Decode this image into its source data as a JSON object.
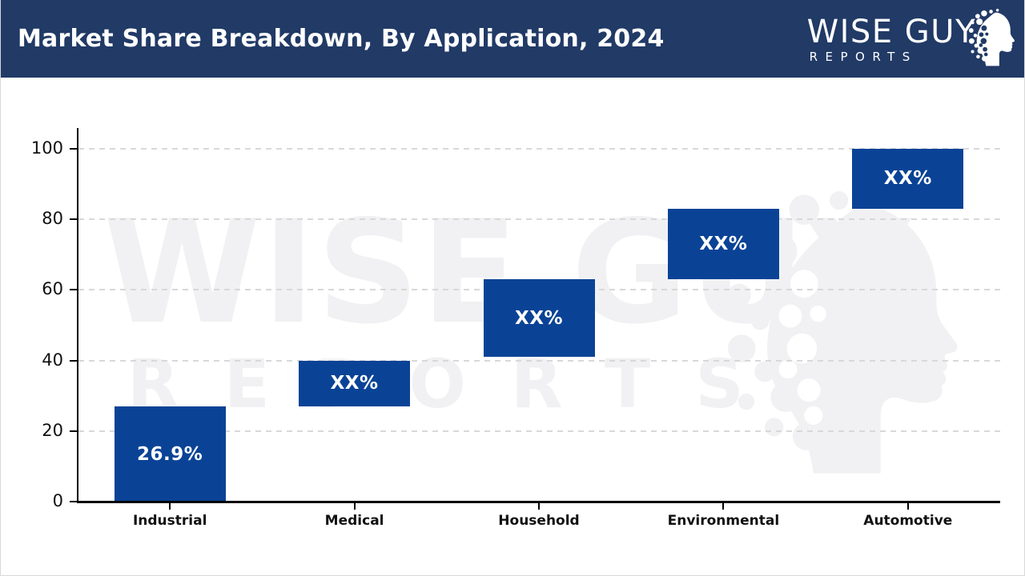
{
  "header": {
    "title": "Market Share Breakdown, By Application, 2024",
    "logo": {
      "name": "WISE GUY",
      "tagline": "REPORTS"
    }
  },
  "watermark": {
    "name": "WISE GUY",
    "tagline": "REPORTS"
  },
  "colors": {
    "header_bg": "#213a66",
    "header_text": "#ffffff",
    "page_border": "#d9d9d9",
    "watermark": "#f1f1f3"
  },
  "chart_data": {
    "type": "bar",
    "subtype": "waterfall-floating-segments",
    "title": "Market Share Breakdown, By Application, 2024",
    "categories": [
      "Industrial",
      "Medical",
      "Household",
      "Environmental",
      "Automotive"
    ],
    "segments": [
      {
        "category": "Industrial",
        "start": 0,
        "end": 26.9,
        "label": "26.9%"
      },
      {
        "category": "Medical",
        "start": 26.9,
        "end": 40,
        "label": "XX%"
      },
      {
        "category": "Household",
        "start": 41,
        "end": 63,
        "label": "XX%"
      },
      {
        "category": "Environmental",
        "start": 63,
        "end": 83,
        "label": "XX%"
      },
      {
        "category": "Automotive",
        "start": 83,
        "end": 100,
        "label": "XX%"
      }
    ],
    "xlabel": "",
    "ylabel": "",
    "ylim": [
      0,
      100
    ],
    "yticks": [
      0,
      20,
      40,
      60,
      80,
      100
    ],
    "grid": "horizontal dashed",
    "legend": "none",
    "colors": {
      "bar": "#0a4396",
      "bar_label": "#ffffff",
      "axis": "#000000",
      "gridline": "#d8d8d8",
      "tick_label": "#111111"
    }
  }
}
